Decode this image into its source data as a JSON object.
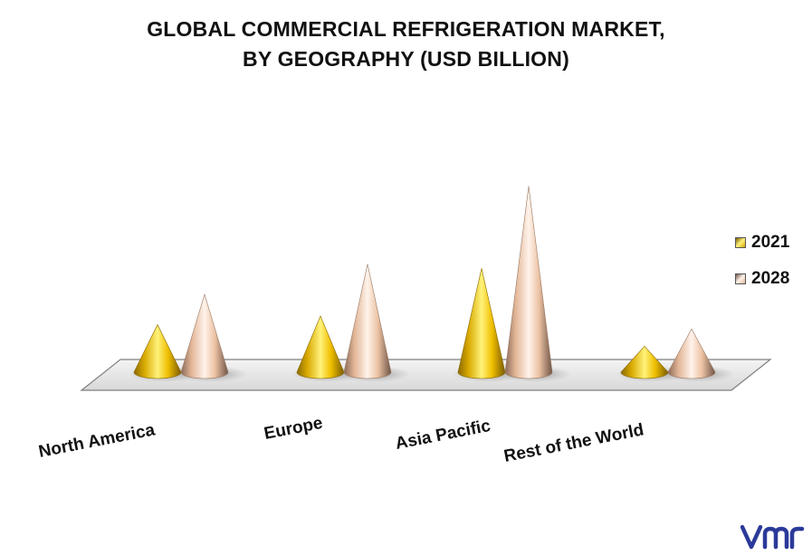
{
  "chart_data": {
    "type": "bar",
    "style": "3d-cone",
    "title_lines": [
      "GLOBAL COMMERCIAL REFRIGERATION MARKET,",
      "BY GEOGRAPHY (USD BILLION)"
    ],
    "categories": [
      "North America",
      "Europe",
      "Asia Pacific",
      "Rest of the World"
    ],
    "series": [
      {
        "name": "2021",
        "values": [
          11,
          13,
          24,
          6
        ],
        "color": "#f2c200"
      },
      {
        "name": "2028",
        "values": [
          18,
          25,
          43,
          10
        ],
        "color": "#efc3a2"
      }
    ],
    "ylim": [
      0,
      45
    ],
    "legend_position": "right",
    "grid": false
  },
  "brand": {
    "logo_icon": "vmr-logo-icon",
    "color": "#2b3a9a"
  }
}
